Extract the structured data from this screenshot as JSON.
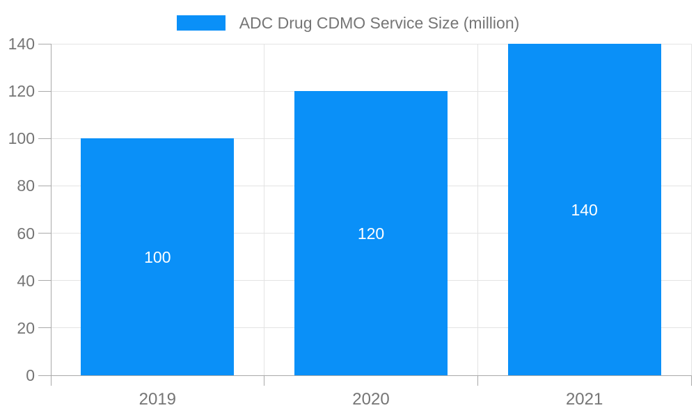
{
  "chart_data": {
    "type": "bar",
    "title": "ADC Drug CDMO Service Size (million)",
    "legend": [
      "ADC Drug CDMO Service Size (million)"
    ],
    "legend_position": "top",
    "categories": [
      "2019",
      "2020",
      "2021"
    ],
    "values": [
      100,
      120,
      140
    ],
    "bar_labels": [
      "100",
      "120",
      "140"
    ],
    "xlabel": "",
    "ylabel": "",
    "ylim": [
      0,
      140
    ],
    "yticks": [
      0,
      20,
      40,
      60,
      80,
      100,
      120,
      140
    ],
    "grid": true
  },
  "colors": {
    "bar": "#0a90f8",
    "bar_label": "#ffffff",
    "gridline": "#e3e3e3",
    "axis_line": "#a9a9a9",
    "tick_text": "#757575",
    "background": "#ffffff"
  }
}
